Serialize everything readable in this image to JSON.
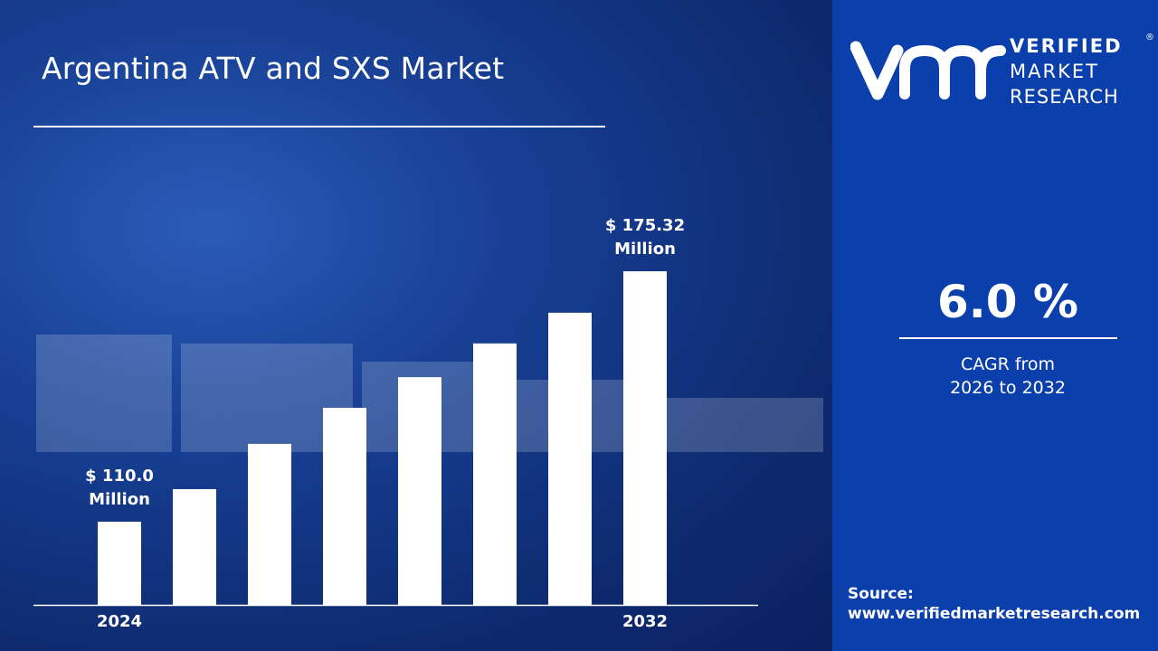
{
  "title": "Argentina ATV and SXS Market",
  "brand": {
    "line1": "VERIFIED",
    "line2": "MARKET",
    "line3": "RESEARCH",
    "mark": "vmr",
    "registered": "®"
  },
  "cagr": {
    "value": "6.0 %",
    "line1": "CAGR from",
    "line2": "2026 to 2032"
  },
  "source": {
    "label": "Source:",
    "url": "www.verifiedmarketresearch.com"
  },
  "colors": {
    "bars": "#ffffff",
    "panel": "#0a3fac",
    "background": "#0e2c72"
  },
  "chart_data": {
    "type": "bar",
    "categories": [
      "2024",
      "",
      "",
      "",
      "",
      "",
      "",
      "2032"
    ],
    "values": [
      110.0,
      118.5,
      130.3,
      139.7,
      147.7,
      156.5,
      164.5,
      175.32
    ],
    "data_labels": [
      {
        "index": 0,
        "line1": "$ 110.0",
        "line2": "Million"
      },
      {
        "index": 7,
        "line1": "$ 175.32",
        "line2": "Million"
      }
    ],
    "xlabel": "",
    "ylabel": "",
    "grid": false,
    "y_axis_visible": false,
    "unit": "USD Million"
  }
}
